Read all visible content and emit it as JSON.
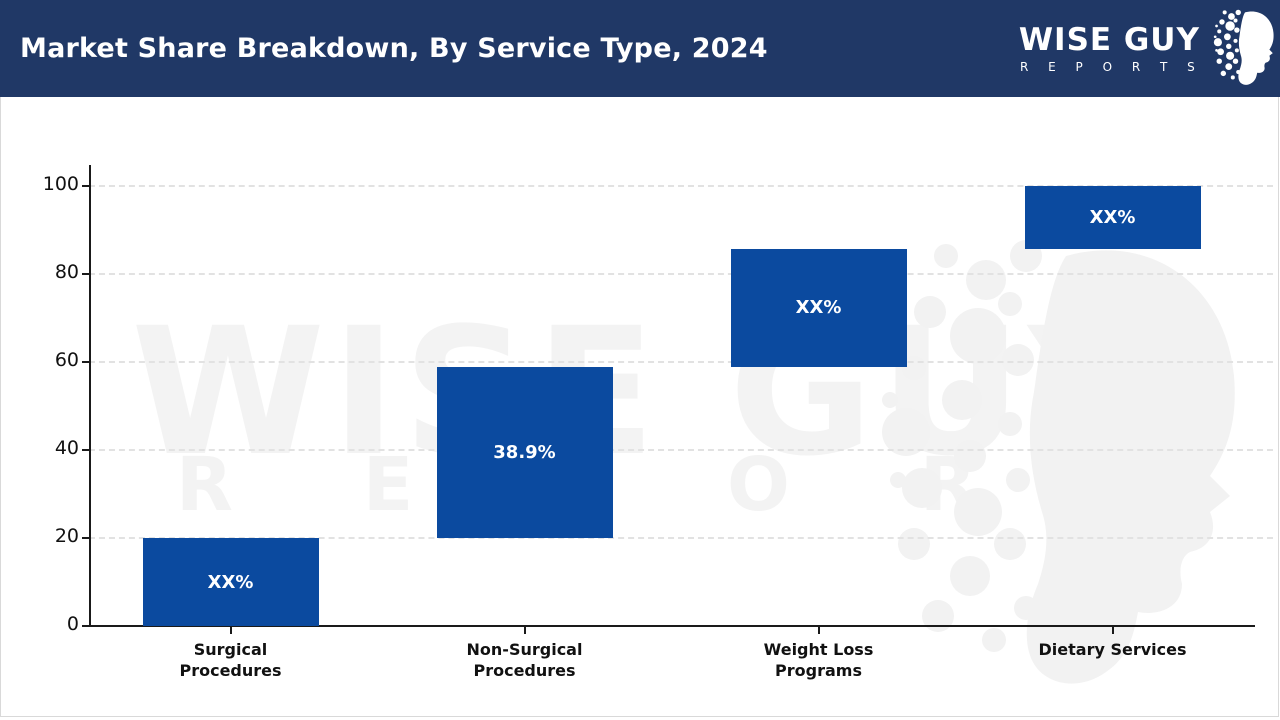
{
  "header": {
    "title": "Market Share Breakdown, By Service Type, 2024",
    "logo": {
      "brand": "WISE GUY",
      "sub": "R E P O R T S"
    }
  },
  "watermark": {
    "brand": "WISE GUY.",
    "sub": "R E P O R T S"
  },
  "chart_data": {
    "type": "bar",
    "subtype": "waterfall-floating-bars",
    "title": "Market Share Breakdown, By Service Type, 2024",
    "categories": [
      "Surgical Procedures",
      "Non-Surgical Procedures",
      "Weight Loss Programs",
      "Dietary Services"
    ],
    "category_lines": [
      "Surgical\nProcedures",
      "Non-Surgical\nProcedures",
      "Weight Loss\nPrograms",
      "Dietary Services"
    ],
    "segments": [
      {
        "category": "Surgical Procedures",
        "start": 0,
        "end": 20,
        "size": 20,
        "label": "XX%"
      },
      {
        "category": "Non-Surgical Procedures",
        "start": 20,
        "end": 58.9,
        "size": 38.9,
        "label": "38.9%"
      },
      {
        "category": "Weight Loss Programs",
        "start": 58.9,
        "end": 85.7,
        "size": 26.8,
        "label": "XX%"
      },
      {
        "category": "Dietary Services",
        "start": 85.7,
        "end": 100,
        "size": 14.3,
        "label": "XX%"
      }
    ],
    "yticks": [
      0,
      20,
      40,
      60,
      80,
      100
    ],
    "ylim": [
      0,
      105
    ],
    "xlabel": "",
    "ylabel": "",
    "grid": "horizontal-dashed",
    "legend": "none",
    "bar_color": "#0b4a9f",
    "bar_label_color": "#ffffff"
  },
  "colors": {
    "header_bg": "#203866",
    "bar": "#0b4a9f",
    "axis": "#1a1a1a",
    "gridline": "#e2e2e2",
    "card_border": "#d9d9d9",
    "watermark": "#f3f3f3",
    "title_text": "#ffffff"
  }
}
